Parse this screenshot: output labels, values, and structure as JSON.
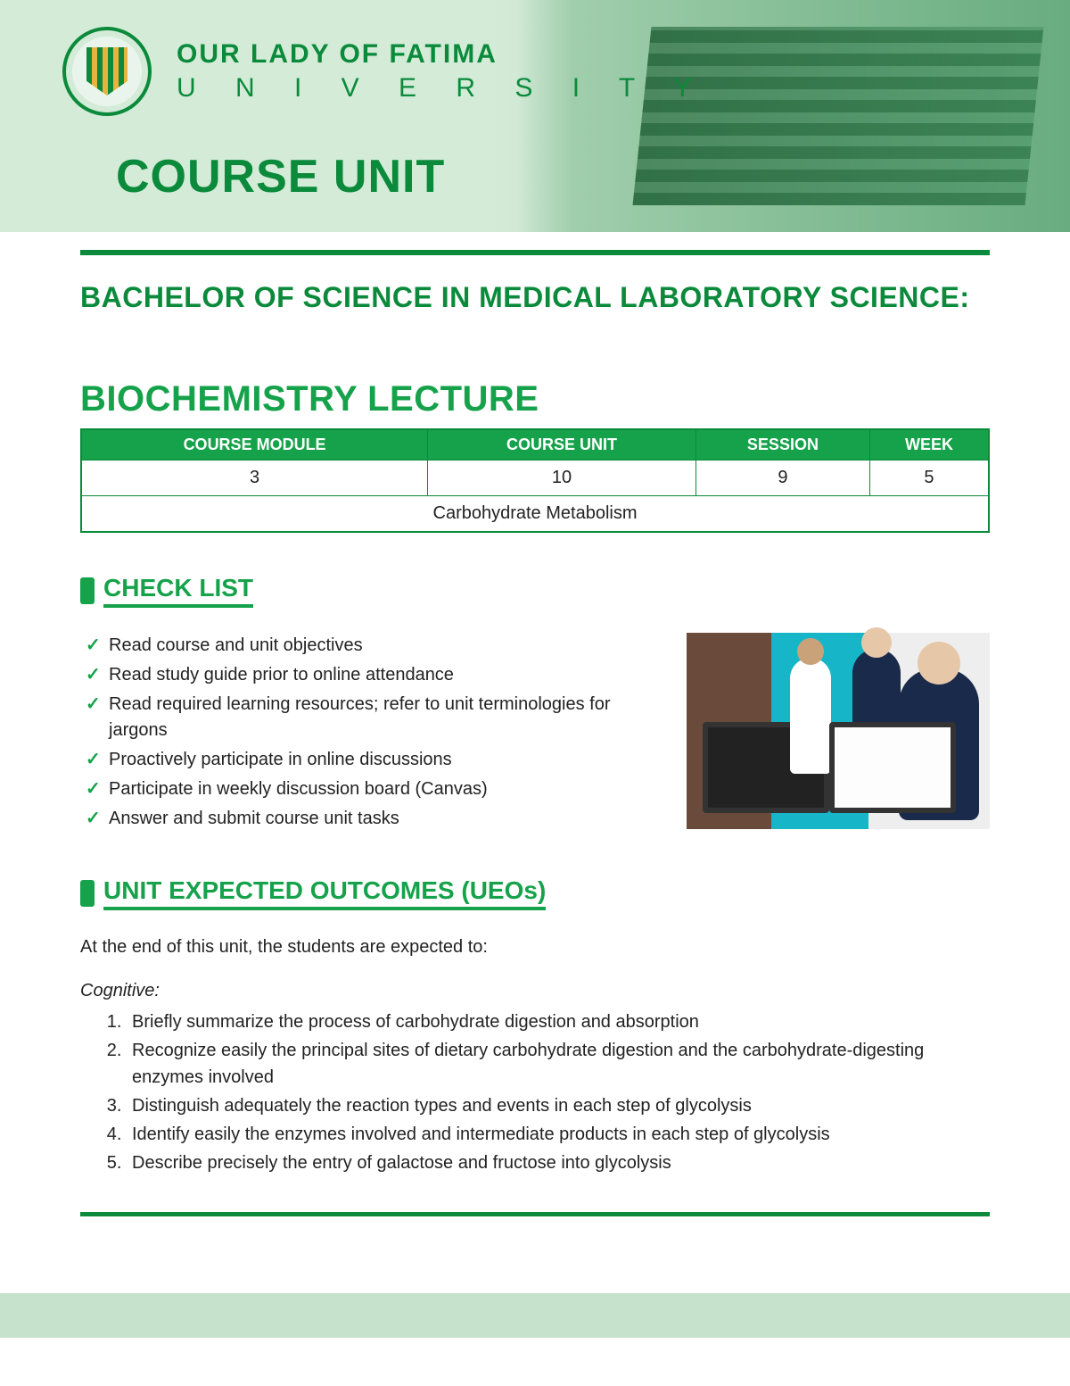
{
  "colors": {
    "brand_green": "#0a8a3a",
    "bright_green": "#15a24a",
    "band_bg": "#d4ebd8",
    "footer_bg": "#c7e2cc",
    "text": "#222222",
    "white": "#ffffff"
  },
  "header": {
    "university_line1": "OUR LADY OF FATIMA",
    "university_line2": "U N I V E R S I T Y",
    "page_title": "COURSE UNIT"
  },
  "degree_title": "BACHELOR OF SCIENCE IN MEDICAL LABORATORY SCIENCE:",
  "lecture_title": "BIOCHEMISTRY LECTURE",
  "info_table": {
    "headers": [
      "COURSE MODULE",
      "COURSE UNIT",
      "SESSION",
      "WEEK"
    ],
    "values": [
      "3",
      "10",
      "9",
      "5"
    ],
    "topic": "Carbohydrate Metabolism"
  },
  "checklist": {
    "heading": "CHECK LIST",
    "items": [
      "Read course and unit objectives",
      "Read study guide prior to online attendance",
      "Read required learning resources; refer to unit terminologies for jargons",
      "Proactively participate in online discussions",
      "Participate in weekly discussion board (Canvas)",
      "Answer and submit course unit tasks"
    ]
  },
  "outcomes": {
    "heading": "UNIT EXPECTED OUTCOMES (UEOs)",
    "intro": "At the end of this unit, the students are expected to:",
    "category": "Cognitive:",
    "items": [
      "Briefly summarize the process of carbohydrate digestion and absorption",
      "Recognize easily the principal sites of dietary carbohydrate digestion and the carbohydrate-digesting enzymes involved",
      "Distinguish adequately the reaction types and events in each step of glycolysis",
      "Identify easily the enzymes involved and intermediate products in each step of glycolysis",
      "Describe precisely the entry of galactose and fructose into glycolysis"
    ]
  }
}
